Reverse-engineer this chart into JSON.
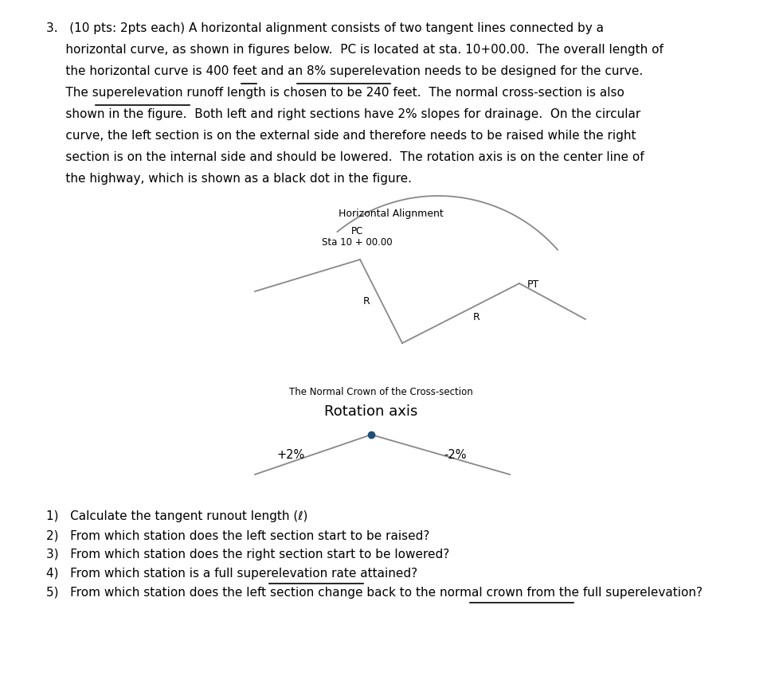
{
  "background_color": "#ffffff",
  "text_color": "#000000",
  "line_color": "#888888",
  "dot_color": "#1f4e79",
  "fig_title1": "Horizontal Alignment",
  "pc_label_line1": "PC",
  "pc_label_line2": "Sta 10 + 00.00",
  "pt_label": "PT",
  "R_label1": "R",
  "R_label2": "R",
  "fig_title2": "The Normal Crown of the Cross-section",
  "rotation_axis_label": "Rotation axis",
  "plus2_label": "+2%",
  "minus2_label": "-2%",
  "paragraph_lines": [
    "3.   (10 pts: 2pts each) A horizontal alignment consists of two tangent lines connected by a",
    "     horizontal curve, as shown in figures below.  PC is located at sta. 10+00.00.  The overall length of",
    "     the horizontal curve is 400 feet and an 8% superelevation needs to be designed for the curve.",
    "     The superelevation runoff length is chosen to be 240 feet.  The normal cross-section is also",
    "     shown in the figure.  Both left and right sections have 2% slopes for drainage.  On the circular",
    "     curve, the left section is on the external side and therefore needs to be raised while the right",
    "     section is on the internal side and should be lowered.  The rotation axis is on the center line of",
    "     the highway, which is shown as a black dot in the figure."
  ],
  "questions": [
    "1)   Calculate the tangent runout length (ℓ)",
    "2)   From which station does the left section start to be raised?",
    "3)   From which station does the right section start to be lowered?",
    "4)   From which station is a full superelevation rate attained?",
    "5)   From which station does the left section change back to the normal crown from the full superelevation?"
  ]
}
